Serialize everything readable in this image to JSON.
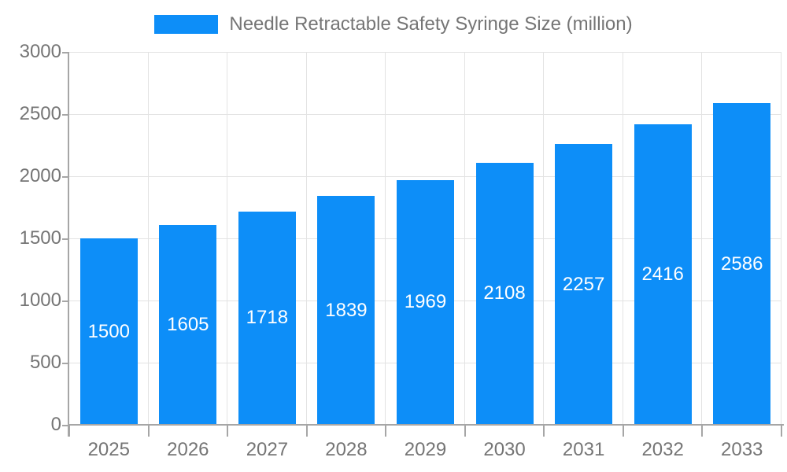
{
  "page": {
    "background": "#ffffff"
  },
  "legend": {
    "label": "Needle Retractable Safety Syringe Size (million)",
    "swatch_color": "#0d8ef8"
  },
  "chart_data": {
    "type": "bar",
    "title": "Needle Retractable Safety Syringe Size (million)",
    "categories": [
      "2025",
      "2026",
      "2027",
      "2028",
      "2029",
      "2030",
      "2031",
      "2032",
      "2033"
    ],
    "values": [
      1500,
      1605,
      1718,
      1839,
      1969,
      2108,
      2257,
      2416,
      2586
    ],
    "value_labels": [
      "1500",
      "1605",
      "1718",
      "1839",
      "1969",
      "2108",
      "2257",
      "2416",
      "2586"
    ],
    "xlabel": "",
    "ylabel": "",
    "ylim": [
      0,
      3000
    ],
    "ytick_step": 500,
    "ytick_labels": [
      "0",
      "500",
      "1000",
      "1500",
      "2000",
      "2500",
      "3000"
    ],
    "grid": true,
    "legend_position": "top",
    "colors": {
      "bar": "#0d8ef8",
      "bar_label": "#ffffff",
      "grid": "#e3e3e3",
      "axis": "#a6a6a6",
      "text": "#757575"
    }
  }
}
